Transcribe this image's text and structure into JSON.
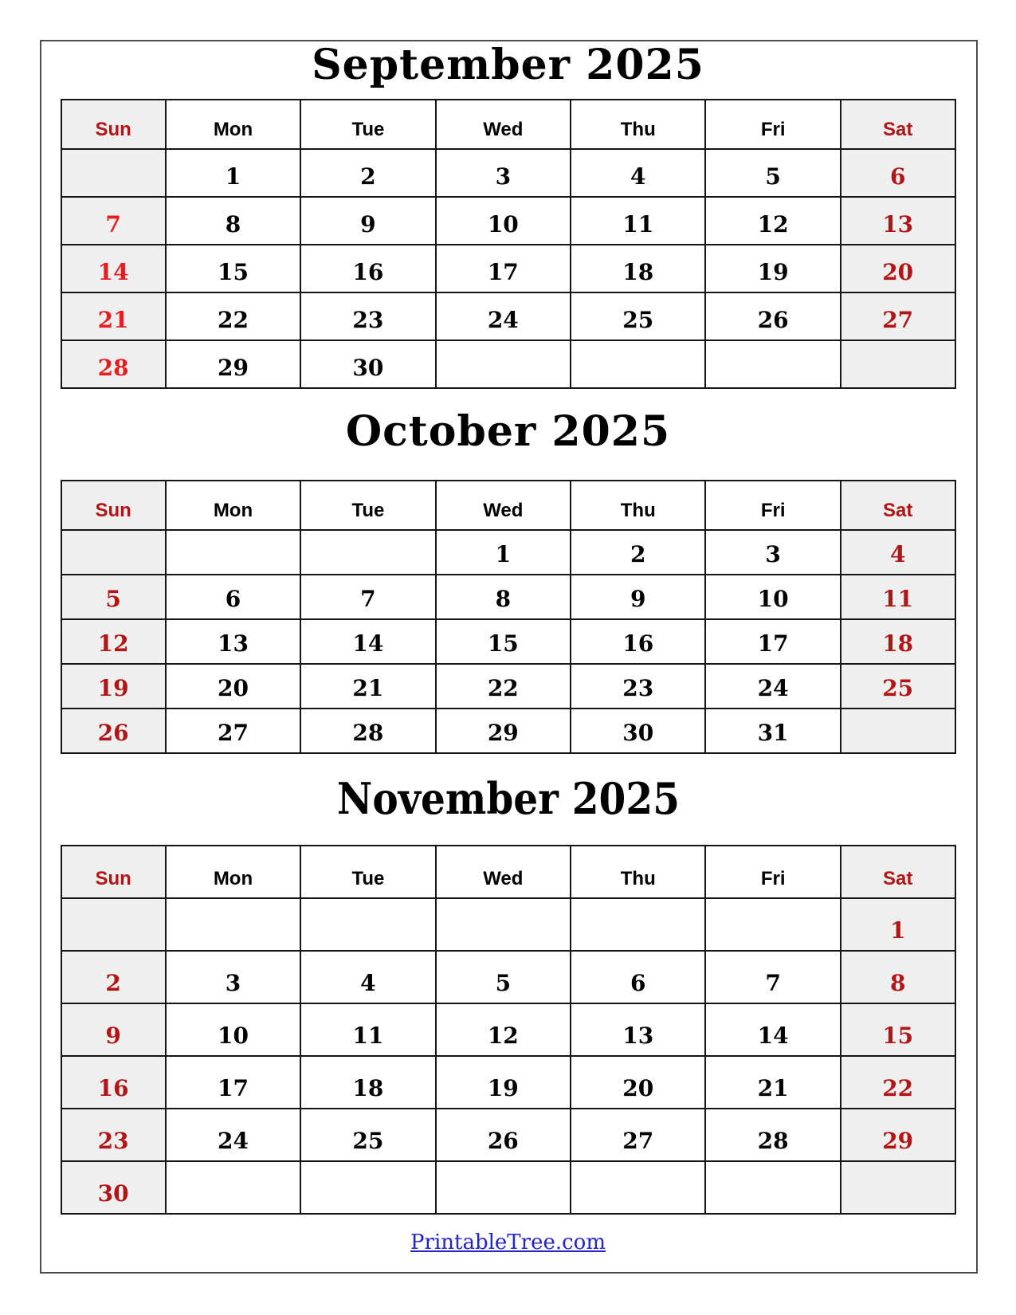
{
  "page": {
    "footer_link": "PrintableTree.com"
  },
  "colors": {
    "weekend_background": "#efefef",
    "weekend_text": "#b21515",
    "september_sunday_text": "#e41f1f",
    "weekday_text": "#000000",
    "grid_border": "#151515",
    "page_border": "#4d4d4d",
    "footer_link": "#2323cc"
  },
  "calendar": {
    "day_headers": [
      "Sun",
      "Mon",
      "Tue",
      "Wed",
      "Thu",
      "Fri",
      "Sat"
    ],
    "months": [
      {
        "title": "September 2025",
        "weeks": [
          [
            "",
            "1",
            "2",
            "3",
            "4",
            "5",
            "6"
          ],
          [
            "7",
            "8",
            "9",
            "10",
            "11",
            "12",
            "13"
          ],
          [
            "14",
            "15",
            "16",
            "17",
            "18",
            "19",
            "20"
          ],
          [
            "21",
            "22",
            "23",
            "24",
            "25",
            "26",
            "27"
          ],
          [
            "28",
            "29",
            "30",
            "",
            "",
            "",
            ""
          ]
        ]
      },
      {
        "title": "October 2025",
        "weeks": [
          [
            "",
            "",
            "",
            "1",
            "2",
            "3",
            "4"
          ],
          [
            "5",
            "6",
            "7",
            "8",
            "9",
            "10",
            "11"
          ],
          [
            "12",
            "13",
            "14",
            "15",
            "16",
            "17",
            "18"
          ],
          [
            "19",
            "20",
            "21",
            "22",
            "23",
            "24",
            "25"
          ],
          [
            "26",
            "27",
            "28",
            "29",
            "30",
            "31",
            ""
          ]
        ]
      },
      {
        "title": "November 2025",
        "weeks": [
          [
            "",
            "",
            "",
            "",
            "",
            "",
            "1"
          ],
          [
            "2",
            "3",
            "4",
            "5",
            "6",
            "7",
            "8"
          ],
          [
            "9",
            "10",
            "11",
            "12",
            "13",
            "14",
            "15"
          ],
          [
            "16",
            "17",
            "18",
            "19",
            "20",
            "21",
            "22"
          ],
          [
            "23",
            "24",
            "25",
            "26",
            "27",
            "28",
            "29"
          ],
          [
            "30",
            "",
            "",
            "",
            "",
            "",
            ""
          ]
        ]
      }
    ]
  }
}
